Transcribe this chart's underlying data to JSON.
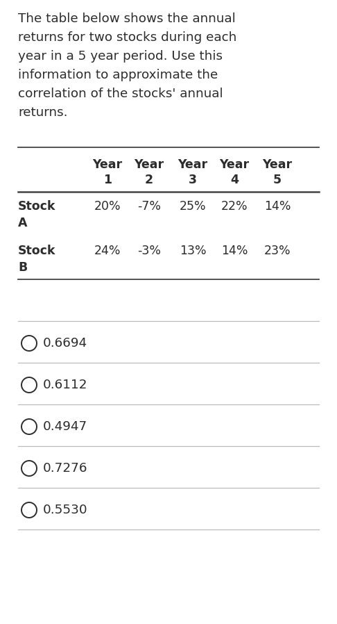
{
  "paragraph_lines": [
    "The table below shows the annual",
    "returns for two stocks during each",
    "year in a 5 year period. Use this",
    "information to approximate the",
    "correlation of the stocks' annual",
    "returns."
  ],
  "col_headers_word": [
    "Year",
    "Year",
    "Year",
    "Year",
    "Year"
  ],
  "col_headers_num": [
    "1",
    "2",
    "3",
    "4",
    "5"
  ],
  "row1_label_line1": "Stock",
  "row1_label_line2": "A",
  "row1_values": [
    "20%",
    "-7%",
    "25%",
    "22%",
    "14%"
  ],
  "row2_label_line1": "Stock",
  "row2_label_line2": "B",
  "row2_values": [
    "24%",
    "-3%",
    "13%",
    "14%",
    "23%"
  ],
  "options": [
    "0.6694",
    "0.6112",
    "0.4947",
    "0.7276",
    "0.5530"
  ],
  "bg_color": "#ffffff",
  "text_color": "#2d2d2d",
  "line_color": "#bbbbbb",
  "dark_line_color": "#444444"
}
